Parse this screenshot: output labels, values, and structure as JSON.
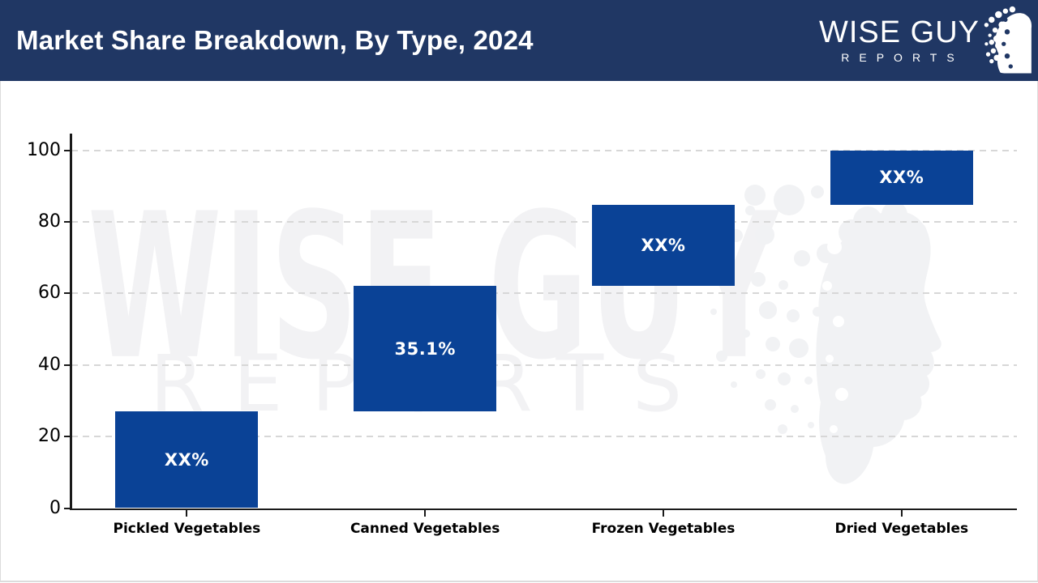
{
  "header": {
    "title": "Market Share Breakdown, By Type, 2024",
    "bg_color": "#203764",
    "logo": {
      "wordmark": "WISE GUY",
      "subtitle": "REPORTS"
    }
  },
  "watermark": {
    "wordmark": "WISE GUY",
    "subtitle": "REPORTS"
  },
  "chart_data": {
    "type": "bar",
    "subtype": "floating-waterfall",
    "title": "Market Share Breakdown, By Type, 2024",
    "categories": [
      "Pickled Vegetables",
      "Canned Vegetables",
      "Frozen Vegetables",
      "Dried Vegetables"
    ],
    "bars": [
      {
        "category": "Pickled Vegetables",
        "start": 0,
        "end": 27.0,
        "value": 27.0,
        "value_label": "XX%"
      },
      {
        "category": "Canned Vegetables",
        "start": 27.0,
        "end": 62.1,
        "value": 35.1,
        "value_label": "35.1%"
      },
      {
        "category": "Frozen Vegetables",
        "start": 62.1,
        "end": 84.8,
        "value": 22.7,
        "value_label": "XX%"
      },
      {
        "category": "Dried Vegetables",
        "start": 84.8,
        "end": 100.0,
        "value": 15.2,
        "value_label": "XX%"
      }
    ],
    "xlabel": "",
    "ylabel": "",
    "ylim": [
      0,
      105
    ],
    "yticks": [
      0,
      20,
      40,
      60,
      80,
      100
    ],
    "grid": {
      "horizontal": true,
      "style": "dashed",
      "color": "#d7d7d7"
    },
    "legend": "none",
    "bar_color": "#0a4296",
    "bar_label_color": "#ffffff",
    "axis_color": "#1a1a1a"
  }
}
